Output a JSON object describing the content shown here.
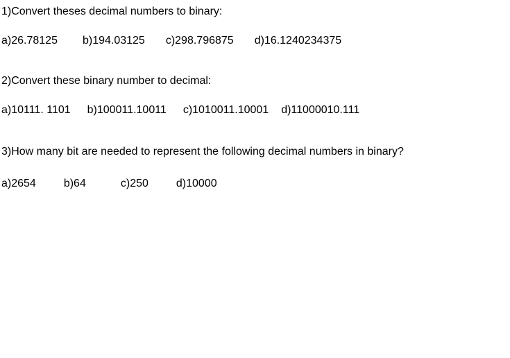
{
  "text_color": "#000000",
  "background_color": "#ffffff",
  "font_size_pt": 12,
  "q1": {
    "prompt": "1)Convert theses decimal numbers to binary:",
    "a": "a)26.78125",
    "b": "b)194.03125",
    "c": "c)298.796875",
    "d": "d)16.1240234375"
  },
  "q2": {
    "prompt": "2)Convert these binary number to decimal:",
    "a": "a)10111. 1101",
    "b": "b)100011.10011",
    "c": "c)1010011.10001",
    "d": "d)11000010.111"
  },
  "q3": {
    "prompt": "3)How many bit are needed to represent the following decimal numbers in binary?",
    "a": "a)2654",
    "b": "b)64",
    "c": "c)250",
    "d": "d)10000"
  }
}
